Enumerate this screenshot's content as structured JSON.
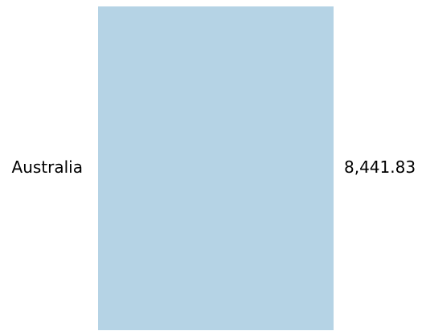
{
  "chart_data": {
    "type": "bar",
    "orientation": "horizontal",
    "categories": [
      "Australia"
    ],
    "values": [
      8441.83
    ],
    "value_labels": [
      "8,441.83"
    ],
    "color": "#b5d3e5"
  }
}
